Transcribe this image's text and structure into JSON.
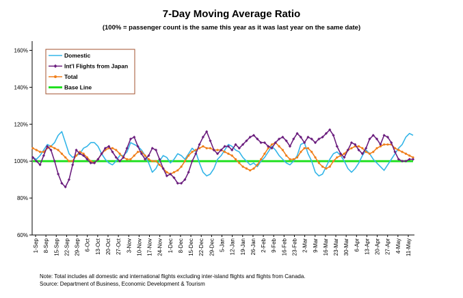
{
  "chart_data": {
    "type": "line",
    "title": "7-Day Moving Average Ratio",
    "subtitle": "(100% = passenger count is the same this year as it was last year on the same date)",
    "y_tick_labels": [
      "60%",
      "80%",
      "100%",
      "120%",
      "140%",
      "160%"
    ],
    "y_ticks": [
      60,
      80,
      100,
      120,
      140,
      160
    ],
    "ylim": [
      60,
      165
    ],
    "x_tick_labels": [
      "1-Sep",
      "8-Sep",
      "15-Sep",
      "22-Sep",
      "29-Sep",
      "6-Oct",
      "13-Oct",
      "20-Oct",
      "27-Oct",
      "3-Nov",
      "10-Nov",
      "17-Nov",
      "24-Nov",
      "1-Dec",
      "8-Dec",
      "15-Dec",
      "22-Dec",
      "29-Dec",
      "5-Jan",
      "12-Jan",
      "19-Jan",
      "26-Jan",
      "2-Feb",
      "9-Feb",
      "16-Feb",
      "23-Feb",
      "2-Mar",
      "9-Mar",
      "16-Mar",
      "23-Mar",
      "30-Mar",
      "6-Apr",
      "13-Apr",
      "20-Apr",
      "27-Apr",
      "4-May",
      "11-May"
    ],
    "legend_position": "top-left",
    "series": [
      {
        "name": "Domestic",
        "color": "#33b5e8",
        "marker": "none",
        "values": [
          102,
          101,
          103,
          106,
          109,
          108,
          110,
          114,
          116,
          110,
          104,
          102,
          103,
          104,
          107,
          108,
          110,
          110,
          108,
          104,
          101,
          99,
          98,
          100,
          103,
          103,
          105,
          110,
          109,
          108,
          106,
          103,
          99,
          94,
          96,
          100,
          103,
          102,
          99,
          101,
          104,
          103,
          101,
          104,
          107,
          105,
          99,
          94,
          92,
          93,
          96,
          101,
          103,
          106,
          109,
          108,
          106,
          105,
          102,
          100,
          98,
          99,
          97,
          100,
          102,
          105,
          108,
          106,
          103,
          101,
          99,
          98,
          100,
          103,
          109,
          110,
          104,
          100,
          94,
          92,
          93,
          97,
          101,
          104,
          105,
          103,
          100,
          96,
          94,
          96,
          99,
          103,
          106,
          104,
          101,
          99,
          97,
          95,
          98,
          101,
          104,
          107,
          109,
          113,
          115,
          114
        ]
      },
      {
        "name": "Int'l Flights from Japan",
        "color": "#6b1e7e",
        "marker": "diamond",
        "values": [
          102,
          100,
          98,
          103,
          108,
          106,
          100,
          93,
          88,
          86,
          90,
          98,
          106,
          104,
          103,
          101,
          99,
          99,
          101,
          104,
          107,
          108,
          105,
          102,
          100,
          102,
          107,
          112,
          113,
          108,
          104,
          101,
          103,
          107,
          106,
          101,
          96,
          92,
          93,
          91,
          88,
          88,
          90,
          94,
          100,
          104,
          109,
          113,
          116,
          111,
          106,
          104,
          106,
          108,
          108,
          106,
          109,
          107,
          109,
          111,
          113,
          114,
          112,
          110,
          110,
          108,
          107,
          110,
          112,
          113,
          111,
          108,
          112,
          115,
          113,
          110,
          113,
          112,
          110,
          112,
          113,
          115,
          117,
          114,
          108,
          104,
          102,
          106,
          110,
          109,
          106,
          104,
          107,
          112,
          114,
          112,
          109,
          114,
          113,
          110,
          105,
          101,
          100,
          100,
          101,
          101
        ]
      },
      {
        "name": "Total",
        "color": "#f07f1a",
        "marker": "circle",
        "values": [
          107,
          106,
          105,
          105,
          107,
          108,
          107,
          106,
          104,
          102,
          100,
          100,
          103,
          105,
          104,
          102,
          100,
          99,
          101,
          104,
          106,
          107,
          107,
          106,
          104,
          102,
          101,
          101,
          103,
          105,
          105,
          103,
          101,
          100,
          100,
          98,
          96,
          94,
          93,
          94,
          95,
          97,
          100,
          103,
          105,
          106,
          107,
          108,
          107,
          107,
          106,
          106,
          106,
          105,
          104,
          103,
          101,
          99,
          97,
          96,
          95,
          96,
          98,
          101,
          104,
          107,
          109,
          110,
          108,
          106,
          103,
          101,
          101,
          102,
          105,
          107,
          107,
          105,
          102,
          99,
          97,
          96,
          97,
          100,
          102,
          103,
          104,
          106,
          107,
          108,
          108,
          107,
          105,
          104,
          105,
          107,
          108,
          109,
          109,
          109,
          107,
          106,
          105,
          104,
          103,
          102
        ]
      },
      {
        "name": "Base Line",
        "color": "#22e022",
        "marker": "none",
        "values": [
          100,
          100
        ]
      }
    ]
  },
  "footnote": {
    "line1": "Note: Total includes all domestic and international flights excluding inter-island flights and flights from Canada.",
    "line2": "Source: Department of Business, Economic Development & Tourism"
  }
}
